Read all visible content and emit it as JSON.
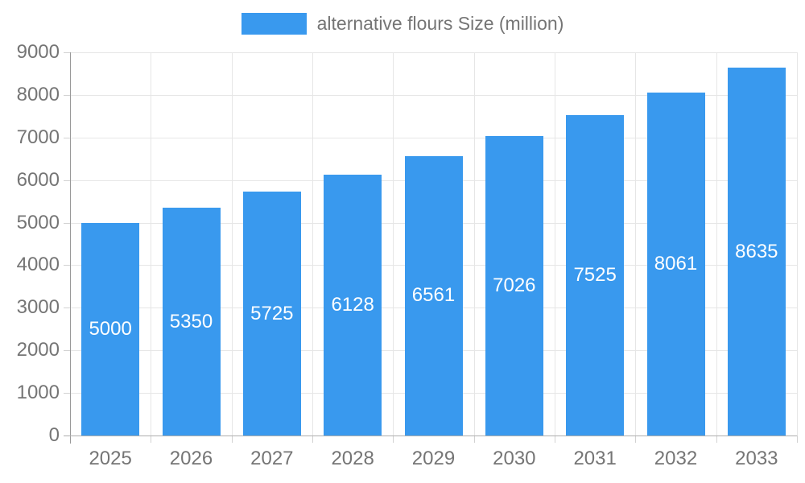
{
  "legend": {
    "items": [
      {
        "label": "alternative flours Size (million)",
        "color": "#3999EE"
      }
    ]
  },
  "chart_data": {
    "type": "bar",
    "title": "alternative flours Size (million)",
    "categories": [
      "2025",
      "2026",
      "2027",
      "2028",
      "2029",
      "2030",
      "2031",
      "2032",
      "2033"
    ],
    "series": [
      {
        "name": "alternative flours Size (million)",
        "color": "#3999EE",
        "values": [
          5000,
          5350,
          5725,
          6128,
          6561,
          7026,
          7525,
          8061,
          8635
        ]
      }
    ],
    "value_labels": [
      5000,
      5350,
      5725,
      6128,
      6561,
      7026,
      7525,
      8061,
      8635
    ],
    "xlabel": "",
    "ylabel": "",
    "ylim": [
      0,
      9000
    ],
    "ytick_step": 1000,
    "ytick_labels": [
      "0",
      "1000",
      "2000",
      "3000",
      "4000",
      "5000",
      "6000",
      "7000",
      "8000",
      "9000"
    ],
    "grid": true,
    "legend_position": "top-center",
    "value_label_position": "inside-center",
    "colors": {
      "bar": "#3999EE",
      "grid": "#E6E6E6",
      "axis": "#999999",
      "baseline": "#ADADAD",
      "tick": "#D2D2D2",
      "label": "#757575",
      "value_label": "#FFFFFF",
      "background": "#FFFFFF"
    }
  }
}
